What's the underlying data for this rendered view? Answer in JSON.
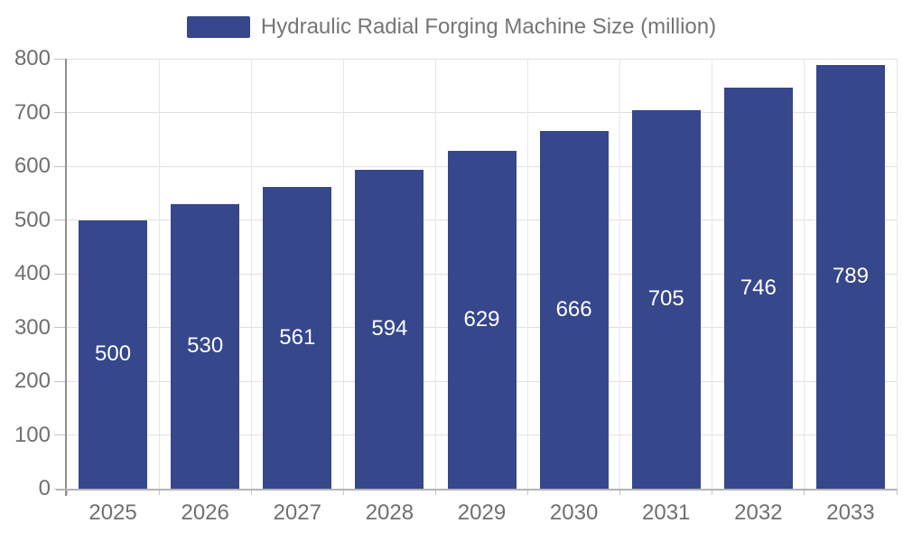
{
  "legend": {
    "label": "Hydraulic Radial Forging Machine Size (million)"
  },
  "chart_data": {
    "type": "bar",
    "title": "Hydraulic Radial Forging Machine Size (million)",
    "categories": [
      "2025",
      "2026",
      "2027",
      "2028",
      "2029",
      "2030",
      "2031",
      "2032",
      "2033"
    ],
    "series": [
      {
        "name": "Hydraulic Radial Forging Machine Size (million)",
        "values": [
          500,
          530,
          561,
          594,
          629,
          666,
          705,
          746,
          789
        ]
      }
    ],
    "xlabel": "",
    "ylabel": "",
    "ylim": [
      0,
      800
    ],
    "yticks": [
      0,
      100,
      200,
      300,
      400,
      500,
      600,
      700,
      800
    ],
    "grid": true,
    "legend_position": "top",
    "colors": {
      "bar": "#36478b",
      "bar_value_text": "#ffffff",
      "axis_text": "#6f6f6f",
      "legend_text": "#757575",
      "grid_line": "#e0e0e0",
      "grid_line_vertical": "#e7e7e7",
      "y_axis_line": "#909090",
      "x_axis_line": "#b3b3b3",
      "tick": "#c4c4c4",
      "background": "#ffffff"
    }
  }
}
